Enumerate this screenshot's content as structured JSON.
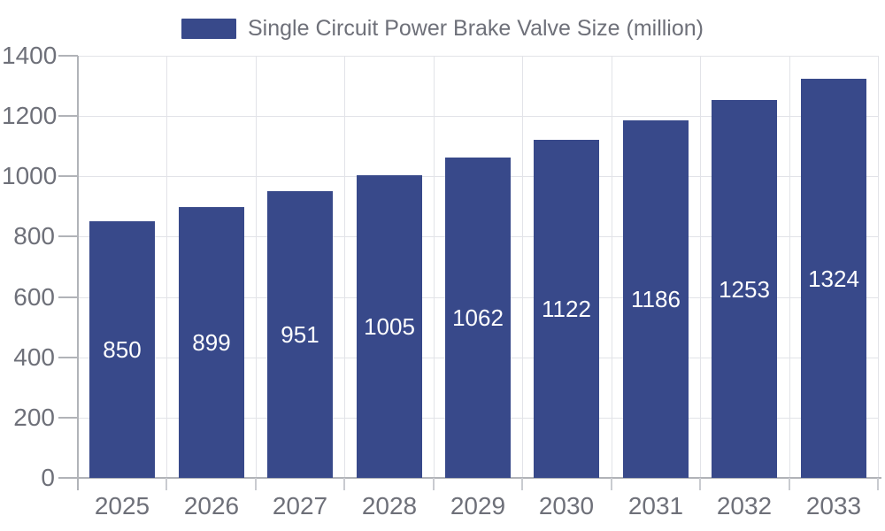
{
  "legend": {
    "label": "Single Circuit Power Brake Valve Size (million)"
  },
  "colors": {
    "bar": "#38498a",
    "axis_label": "#6e7079",
    "legend_text": "#6e7079",
    "value_label": "#ffffff",
    "grid_line": "#e2e3e8",
    "axis_line": "#b1b3b8",
    "tick_line": "#c9cbd0",
    "background": "#ffffff"
  },
  "chart_data": {
    "type": "bar",
    "title": "Single Circuit Power Brake Valve Size (million)",
    "legend_entries": [
      "Single Circuit Power Brake Valve Size (million)"
    ],
    "legend_position": "top",
    "categories": [
      "2025",
      "2026",
      "2027",
      "2028",
      "2029",
      "2030",
      "2031",
      "2032",
      "2033"
    ],
    "series": [
      {
        "name": "Single Circuit Power Brake Valve Size (million)",
        "values": [
          850,
          899,
          951,
          1005,
          1062,
          1122,
          1186,
          1253,
          1324
        ]
      }
    ],
    "xlabel": "",
    "ylabel": "",
    "ylim": [
      0,
      1400
    ],
    "yticks": [
      0,
      200,
      400,
      600,
      800,
      1000,
      1200,
      1400
    ],
    "grid": true,
    "value_labels": "inside-center"
  }
}
